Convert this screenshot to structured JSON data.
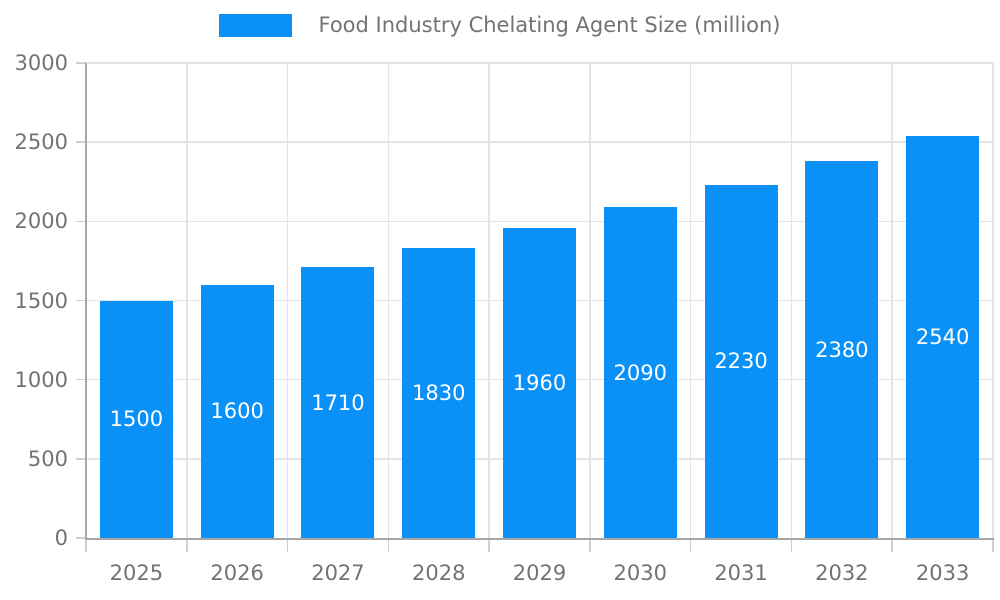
{
  "chart_data": {
    "type": "bar",
    "title": "Food Industry Chelating Agent Size (million)",
    "legend_position": "top-center",
    "categories": [
      "2025",
      "2026",
      "2027",
      "2028",
      "2029",
      "2030",
      "2031",
      "2032",
      "2033"
    ],
    "values": [
      1500,
      1600,
      1710,
      1830,
      1960,
      2090,
      2230,
      2380,
      2540
    ],
    "xlabel": "",
    "ylabel": "",
    "ylim": [
      0,
      3000
    ],
    "yticks": [
      0,
      500,
      1000,
      1500,
      2000,
      2500,
      3000
    ],
    "grid": true,
    "bar_labels_inside": true,
    "colors": {
      "bar": "#0991f8",
      "bar_label": "#ffffff",
      "axis_text": "#737373",
      "grid_line": "#e4e4e4",
      "axis_line": "#a6a6a6",
      "tick": "#cfcfcf",
      "background": "#ffffff"
    }
  }
}
